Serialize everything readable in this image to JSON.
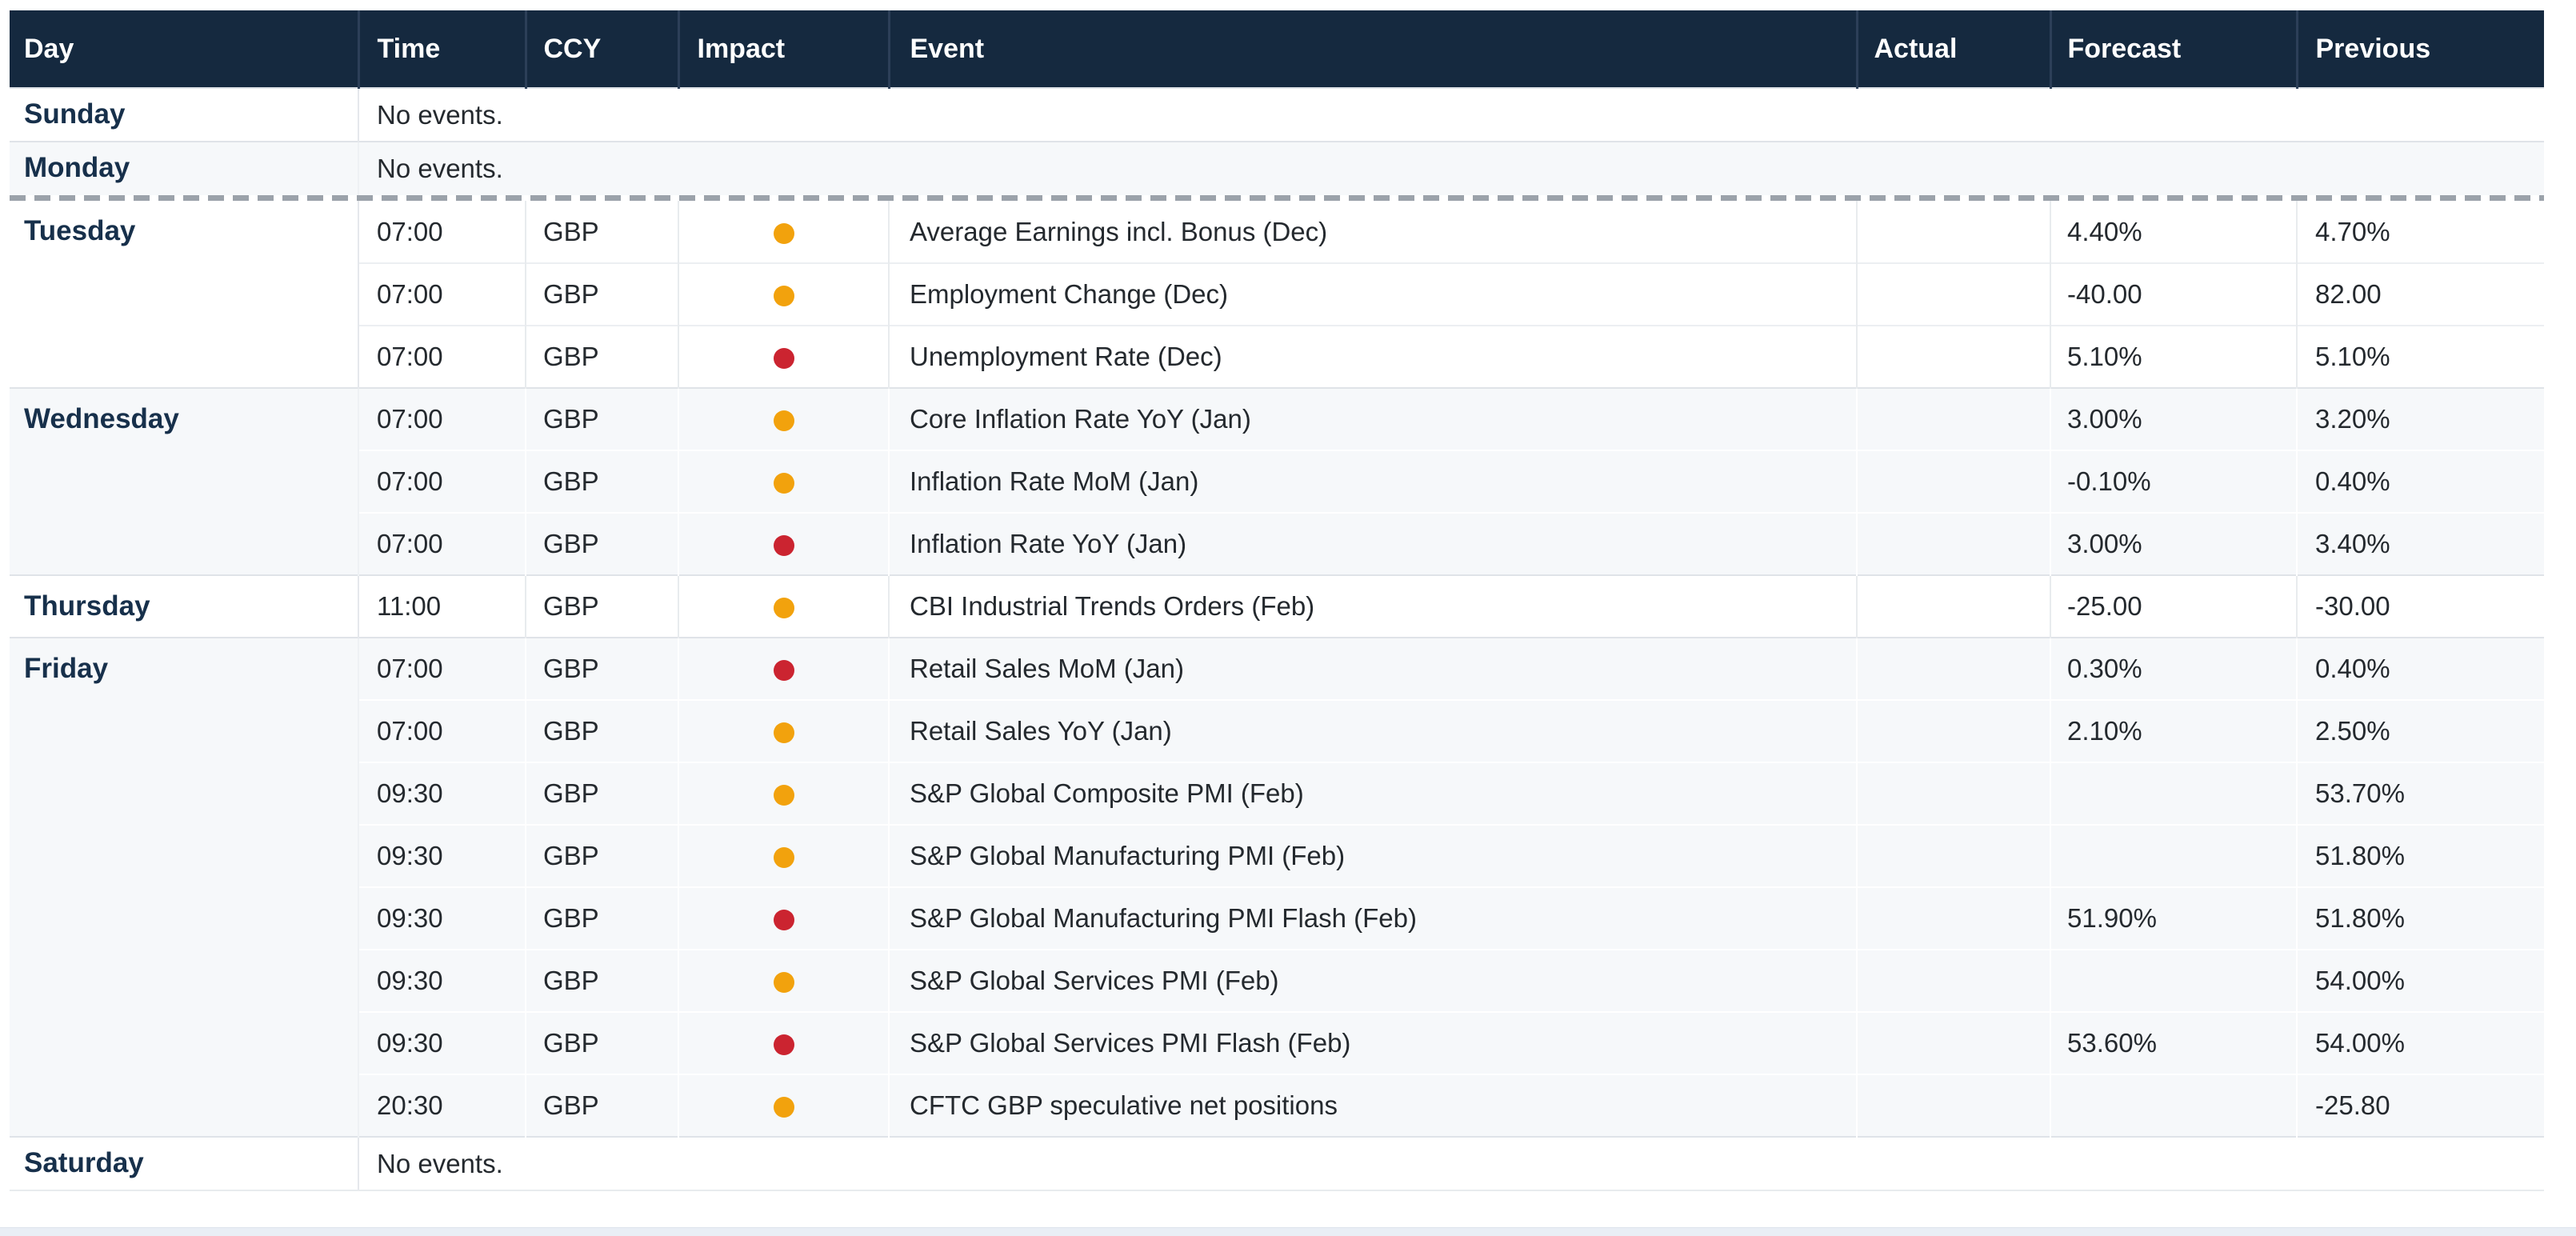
{
  "table": {
    "columns": [
      {
        "key": "day",
        "label": "Day"
      },
      {
        "key": "time",
        "label": "Time"
      },
      {
        "key": "ccy",
        "label": "CCY"
      },
      {
        "key": "impact",
        "label": "Impact"
      },
      {
        "key": "event",
        "label": "Event"
      },
      {
        "key": "actual",
        "label": "Actual"
      },
      {
        "key": "forecast",
        "label": "Forecast"
      },
      {
        "key": "previous",
        "label": "Previous"
      }
    ],
    "impact_colors": {
      "medium": "#F2A20D",
      "high": "#CB2430"
    },
    "colors": {
      "header_bg": "#15293F",
      "header_text": "#FFFFFF",
      "day_text": "#17304B",
      "body_text": "#24292E",
      "shaded_row_bg": "#F6F8FA",
      "divider_dash": "#9BA2AA"
    },
    "days": [
      {
        "day": "Sunday",
        "shaded": false,
        "no_events": true,
        "note": "No events."
      },
      {
        "day": "Monday",
        "shaded": true,
        "no_events": true,
        "note": "No events.",
        "dashed_divider_after": true
      },
      {
        "day": "Tuesday",
        "shaded": false,
        "events": [
          {
            "time": "07:00",
            "ccy": "GBP",
            "impact": "medium",
            "event": "Average Earnings incl. Bonus (Dec)",
            "actual": "",
            "forecast": "4.40%",
            "previous": "4.70%"
          },
          {
            "time": "07:00",
            "ccy": "GBP",
            "impact": "medium",
            "event": "Employment Change (Dec)",
            "actual": "",
            "forecast": "-40.00",
            "previous": "82.00"
          },
          {
            "time": "07:00",
            "ccy": "GBP",
            "impact": "high",
            "event": "Unemployment Rate (Dec)",
            "actual": "",
            "forecast": "5.10%",
            "previous": "5.10%"
          }
        ]
      },
      {
        "day": "Wednesday",
        "shaded": true,
        "events": [
          {
            "time": "07:00",
            "ccy": "GBP",
            "impact": "medium",
            "event": "Core Inflation Rate YoY (Jan)",
            "actual": "",
            "forecast": "3.00%",
            "previous": "3.20%"
          },
          {
            "time": "07:00",
            "ccy": "GBP",
            "impact": "medium",
            "event": "Inflation Rate MoM (Jan)",
            "actual": "",
            "forecast": "-0.10%",
            "previous": "0.40%"
          },
          {
            "time": "07:00",
            "ccy": "GBP",
            "impact": "high",
            "event": "Inflation Rate YoY (Jan)",
            "actual": "",
            "forecast": "3.00%",
            "previous": "3.40%"
          }
        ]
      },
      {
        "day": "Thursday",
        "shaded": false,
        "events": [
          {
            "time": "11:00",
            "ccy": "GBP",
            "impact": "medium",
            "event": "CBI Industrial Trends Orders (Feb)",
            "actual": "",
            "forecast": "-25.00",
            "previous": "-30.00"
          }
        ]
      },
      {
        "day": "Friday",
        "shaded": true,
        "events": [
          {
            "time": "07:00",
            "ccy": "GBP",
            "impact": "high",
            "event": "Retail Sales MoM (Jan)",
            "actual": "",
            "forecast": "0.30%",
            "previous": "0.40%"
          },
          {
            "time": "07:00",
            "ccy": "GBP",
            "impact": "medium",
            "event": "Retail Sales YoY (Jan)",
            "actual": "",
            "forecast": "2.10%",
            "previous": "2.50%"
          },
          {
            "time": "09:30",
            "ccy": "GBP",
            "impact": "medium",
            "event": "S&P Global Composite PMI (Feb)",
            "actual": "",
            "forecast": "",
            "previous": "53.70%"
          },
          {
            "time": "09:30",
            "ccy": "GBP",
            "impact": "medium",
            "event": "S&P Global Manufacturing PMI (Feb)",
            "actual": "",
            "forecast": "",
            "previous": "51.80%"
          },
          {
            "time": "09:30",
            "ccy": "GBP",
            "impact": "high",
            "event": "S&P Global Manufacturing PMI Flash (Feb)",
            "actual": "",
            "forecast": "51.90%",
            "previous": "51.80%"
          },
          {
            "time": "09:30",
            "ccy": "GBP",
            "impact": "medium",
            "event": "S&P Global Services PMI (Feb)",
            "actual": "",
            "forecast": "",
            "previous": "54.00%"
          },
          {
            "time": "09:30",
            "ccy": "GBP",
            "impact": "high",
            "event": "S&P Global Services PMI Flash (Feb)",
            "actual": "",
            "forecast": "53.60%",
            "previous": "54.00%"
          },
          {
            "time": "20:30",
            "ccy": "GBP",
            "impact": "medium",
            "event": "CFTC GBP speculative net positions",
            "actual": "",
            "forecast": "",
            "previous": "-25.80"
          }
        ]
      },
      {
        "day": "Saturday",
        "shaded": false,
        "no_events": true,
        "note": "No events."
      }
    ]
  }
}
